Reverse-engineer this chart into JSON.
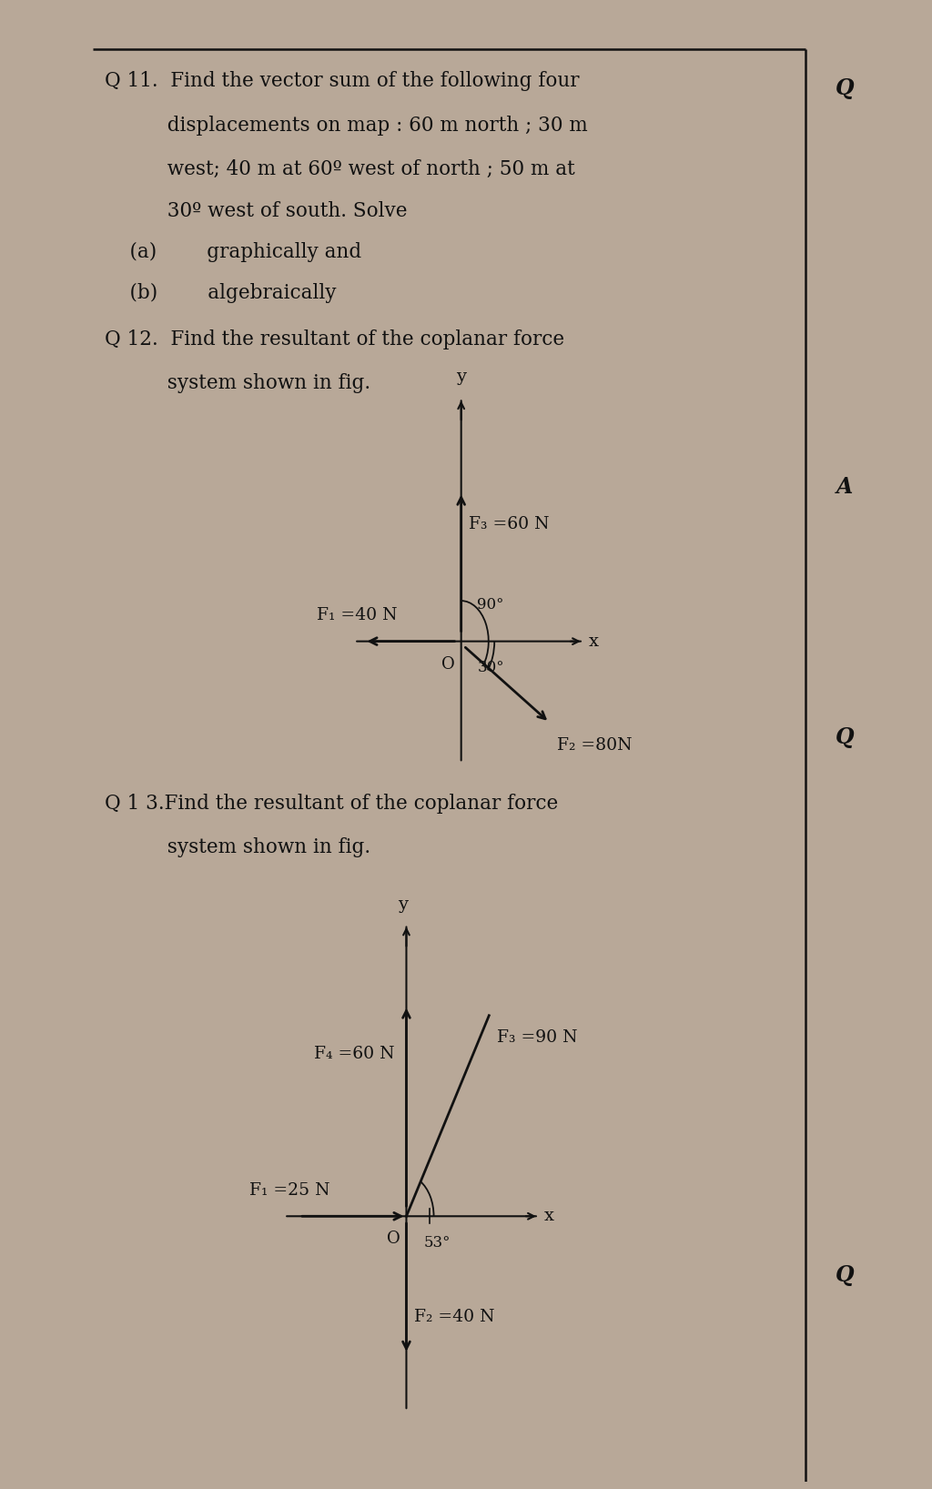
{
  "outer_bg": "#b8a898",
  "page_bg": "#e8e6e2",
  "content_bg": "#edeae4",
  "border_color": "#111111",
  "text_color": "#111111",
  "q11_lines": [
    "Q 11.  Find the vector sum of the following four",
    "          displacements on map : 60 m north ; 30 m",
    "          west; 40 m at 60º west of north ; 50 m at",
    "          30º west of south. Solve",
    "    (a)        graphically and",
    "    (b)        algebraically"
  ],
  "q12_lines": [
    "Q 12.  Find the resultant of the coplanar force",
    "          system shown in fig."
  ],
  "q13_lines": [
    "Q 1 3.Find the resultant of the coplanar force",
    "          system shown in fig."
  ],
  "diagram1": {
    "F1_label": "F₁ =40 N",
    "F2_label": "F₂ =80N",
    "F3_label": "F₃ =60 N",
    "angle1_label": "90°",
    "angle2_label": "30°",
    "x_label": "x",
    "y_label": "y",
    "O_label": "O"
  },
  "diagram2": {
    "F1_label": "F₁ =25 N",
    "F2_label": "F₂ =40 N",
    "F3_label": "F₃ =90 N",
    "F4_label": "F₄ =60 N",
    "angle_label": "53°",
    "x_label": "x",
    "y_label": "y",
    "O_label": "O"
  },
  "right_col_labels": [
    "Q",
    "A",
    "Q",
    "Q"
  ],
  "font_size_q": 15.5,
  "font_size_diag": 13.5,
  "font_size_axis": 13
}
